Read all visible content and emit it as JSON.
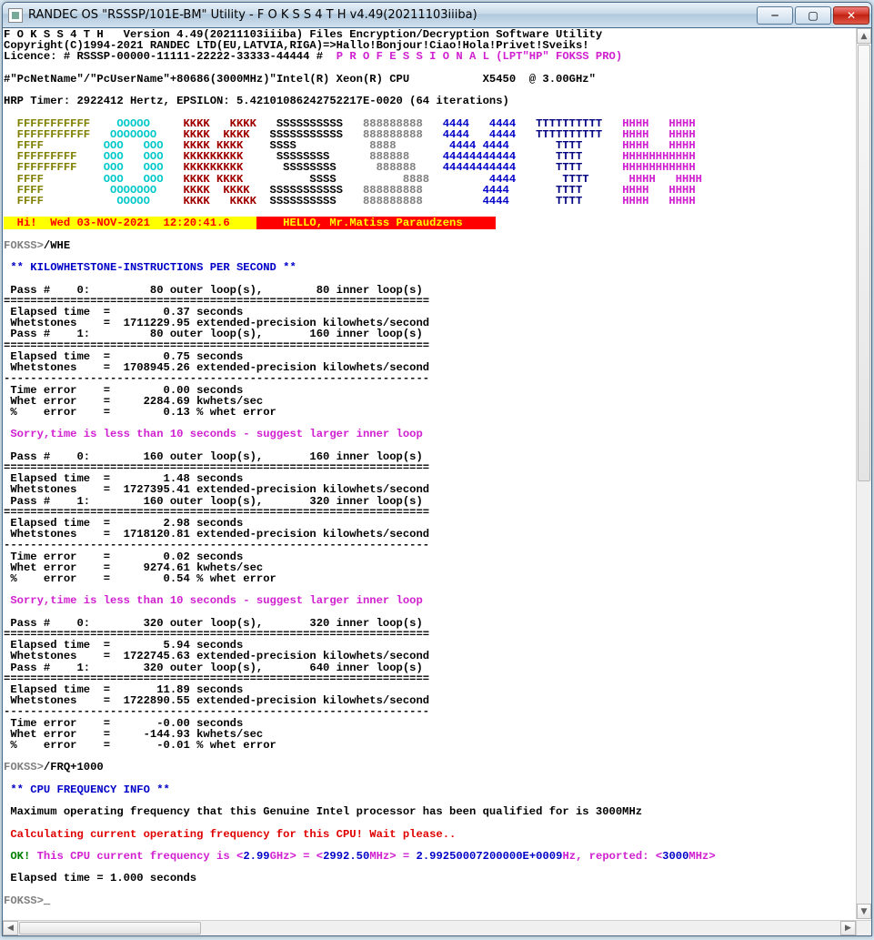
{
  "window": {
    "title": "RANDEC OS \"RSSSP/101E-BM\" Utility  -  F O K S S 4 T H  v4.49(20211103iiiba)"
  },
  "header": {
    "line1": "F O K S S 4 T H   Version 4.49(20211103iiiba) Files Encryption/Decryption Software Utility",
    "line2": "Copyright(C)1994-2021 RANDEC LTD(EU,LATVIA,RIGA)=>Hallo!Bonjour!Ciao!Hola!Privet!Sveiks!",
    "line3a": "Licence: # RSSSP-00000-11111-22222-33333-44444 #  ",
    "line3b": "P R O F E S S I O N A L (LPT\"HP\" FOKSS PRO)",
    "line4": "#\"PcNetName\"/\"PcUserName\"+80686(3000MHz)\"Intel(R) Xeon(R) CPU           X5450  @ 3.00GHz\"",
    "line5": "HRP Timer: 2922412 Hertz, EPSILON: 5.42101086242752217E-0020 (64 iterations)"
  },
  "ascii": {
    "rows": [
      "  FFFFFFFFFFF    OOOOO     KKKK   KKKK   SSSSSSSSSS   888888888   4444   4444   TTTTTTTTTT   HHHH   HHHH",
      "  FFFFFFFFFFF   OOOOOOO    KKKK  KKKK   SSSSSSSSSSS   888888888   4444   4444   TTTTTTTTTT   HHHH   HHHH",
      "  FFFF         OOO   OOO   KKKK KKKK    SSSS           8888        4444 4444       TTTT      HHHH   HHHH",
      "  FFFFFFFFF    OOO   OOO   KKKKKKKKK     SSSSSSSS      888888     44444444444      TTTT      HHHHHHHHHHH",
      "  FFFFFFFFF    OOO   OOO   KKKKKKKKK      SSSSSSSS      888888    44444444444      TTTT      HHHHHHHHHHH",
      "  FFFF         OOO   OOO   KKKK KKKK          SSSS          8888        4444       TTTT      HHHH   HHHH",
      "  FFFF          OOOOOOO    KKKK  KKKK   SSSSSSSSSSS   888888888         4444       TTTT      HHHH   HHHH",
      "  FFFF           OOOOO     KKKK   KKKK  SSSSSSSSSS    888888888         4444       TTTT      HHHH   HHHH"
    ]
  },
  "greet": {
    "left": "  Hi!  Wed 03-NOV-2021  12:20:41.6    ",
    "right": "    HELLO, Mr.Matiss Paraudzens     "
  },
  "prompt1": {
    "label": "FOKSS>",
    "cmd": "/WHE"
  },
  "whe": {
    "title": " ** KILOWHETSTONE-INSTRUCTIONS PER SECOND **",
    "run1": {
      "pass0": " Pass #    0:         80 outer loop(s),        80 inner loop(s)",
      "sep1": "================================================================",
      "et": " Elapsed time  =        0.37 seconds",
      "wh": " Whetstones    =  1711229.95 extended-precision kilowhets/second",
      "pass1": " Pass #    1:         80 outer loop(s),       160 inner loop(s)",
      "sep2": "================================================================",
      "et2": " Elapsed time  =        0.75 seconds",
      "wh2": " Whetstones    =  1708945.26 extended-precision kilowhets/second",
      "sep3": "----------------------------------------------------------------",
      "te": " Time error    =        0.00 seconds",
      "we": " Whet error    =     2284.69 kwhets/sec",
      "pe": " %    error    =        0.13 % whet error",
      "warn": " Sorry,time is less than 10 seconds - suggest larger inner loop"
    },
    "run2": {
      "pass0": " Pass #    0:        160 outer loop(s),       160 inner loop(s)",
      "sep1": "================================================================",
      "et": " Elapsed time  =        1.48 seconds",
      "wh": " Whetstones    =  1727395.41 extended-precision kilowhets/second",
      "pass1": " Pass #    1:        160 outer loop(s),       320 inner loop(s)",
      "sep2": "================================================================",
      "et2": " Elapsed time  =        2.98 seconds",
      "wh2": " Whetstones    =  1718120.81 extended-precision kilowhets/second",
      "sep3": "----------------------------------------------------------------",
      "te": " Time error    =        0.02 seconds",
      "we": " Whet error    =     9274.61 kwhets/sec",
      "pe": " %    error    =        0.54 % whet error",
      "warn": " Sorry,time is less than 10 seconds - suggest larger inner loop"
    },
    "run3": {
      "pass0": " Pass #    0:        320 outer loop(s),       320 inner loop(s)",
      "sep1": "================================================================",
      "et": " Elapsed time  =        5.94 seconds",
      "wh": " Whetstones    =  1722745.63 extended-precision kilowhets/second",
      "pass1": " Pass #    1:        320 outer loop(s),       640 inner loop(s)",
      "sep2": "================================================================",
      "et2": " Elapsed time  =       11.89 seconds",
      "wh2": " Whetstones    =  1722890.55 extended-precision kilowhets/second",
      "sep3": "----------------------------------------------------------------",
      "te": " Time error    =       -0.00 seconds",
      "we": " Whet error    =     -144.93 kwhets/sec",
      "pe": " %    error    =       -0.01 % whet error"
    }
  },
  "prompt2": {
    "label": "FOKSS>",
    "cmd": "/FRQ+1000"
  },
  "frq": {
    "title": " ** CPU FREQUENCY INFO **",
    "max": " Maximum operating frequency that this Genuine Intel processor has been qualified for is 3000MHz",
    "calc": " Calculating current operating frequency for this CPU! Wait please..",
    "ok_prefix": " OK!",
    "ok_body": " This CPU current frequency is <",
    "ghz": "2.99",
    "ghz_u": "GHz",
    "mid1": "> = <",
    "mhz": "2992.50",
    "mhz_u": "MHz",
    "mid2": "> = ",
    "sci": "2.99250007200000E+0009",
    "hz_u": "Hz",
    "rep": ", reported: <",
    "rep_v": "3000",
    "rep_u": "MHz",
    "rep_end": ">",
    "et": " Elapsed time = 1.000 seconds"
  },
  "prompt3": {
    "label": "FOKSS>",
    "cursor": "_"
  }
}
